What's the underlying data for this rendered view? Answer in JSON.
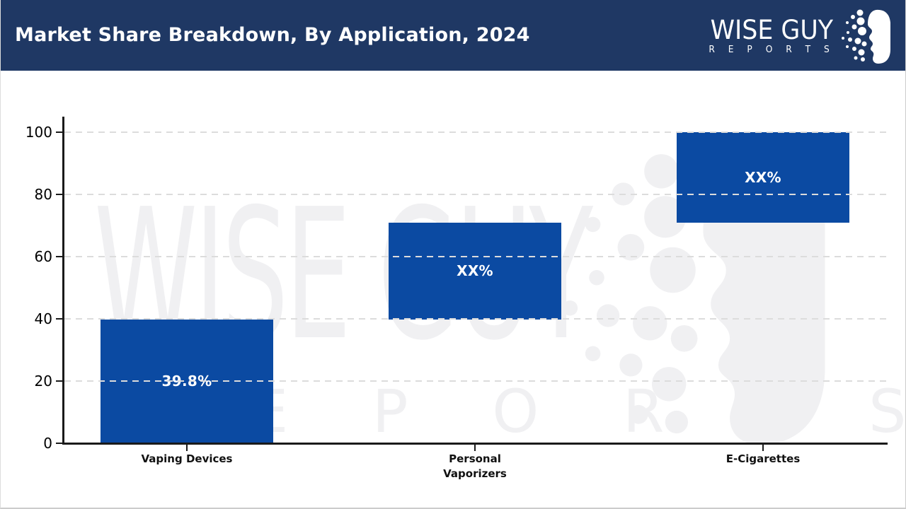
{
  "header": {
    "title": "Market Share Breakdown, By Application, 2024",
    "bg_color": "#1f3864",
    "logo": {
      "wordmark": "WISE GUY",
      "subtitle": "R E P O R T S"
    }
  },
  "watermark": {
    "wordmark": "WISE GUY",
    "subtitle": "R E P O R T S"
  },
  "chart_data": {
    "type": "bar",
    "subtype": "floating-waterfall-breakdown",
    "title": "Market Share Breakdown, By Application, 2024",
    "categories": [
      "Vaping Devices",
      "Personal Vaporizers",
      "E-Cigarettes"
    ],
    "segments": [
      {
        "category": "Vaping Devices",
        "category_lines": [
          "Vaping Devices"
        ],
        "start": 0,
        "end": 39.8,
        "value": 39.8,
        "label": "39.8%"
      },
      {
        "category": "Personal Vaporizers",
        "category_lines": [
          "Personal",
          "Vaporizers"
        ],
        "start": 39.8,
        "end": 70.9,
        "value": 31.1,
        "label": "XX%"
      },
      {
        "category": "E-Cigarettes",
        "category_lines": [
          "E-Cigarettes"
        ],
        "start": 70.9,
        "end": 100,
        "value": 29.1,
        "label": "XX%"
      }
    ],
    "xlabel": "",
    "ylabel": "",
    "ylim": [
      0,
      105
    ],
    "yticks": [
      0,
      20,
      40,
      60,
      80,
      100
    ],
    "grid": "horizontal-dashed",
    "grid_color": "#dcdcdc",
    "bar_color": "#0b4aa2",
    "bar_label_color": "#ffffff",
    "axis_color": "#1a1a1a",
    "legend": null
  }
}
